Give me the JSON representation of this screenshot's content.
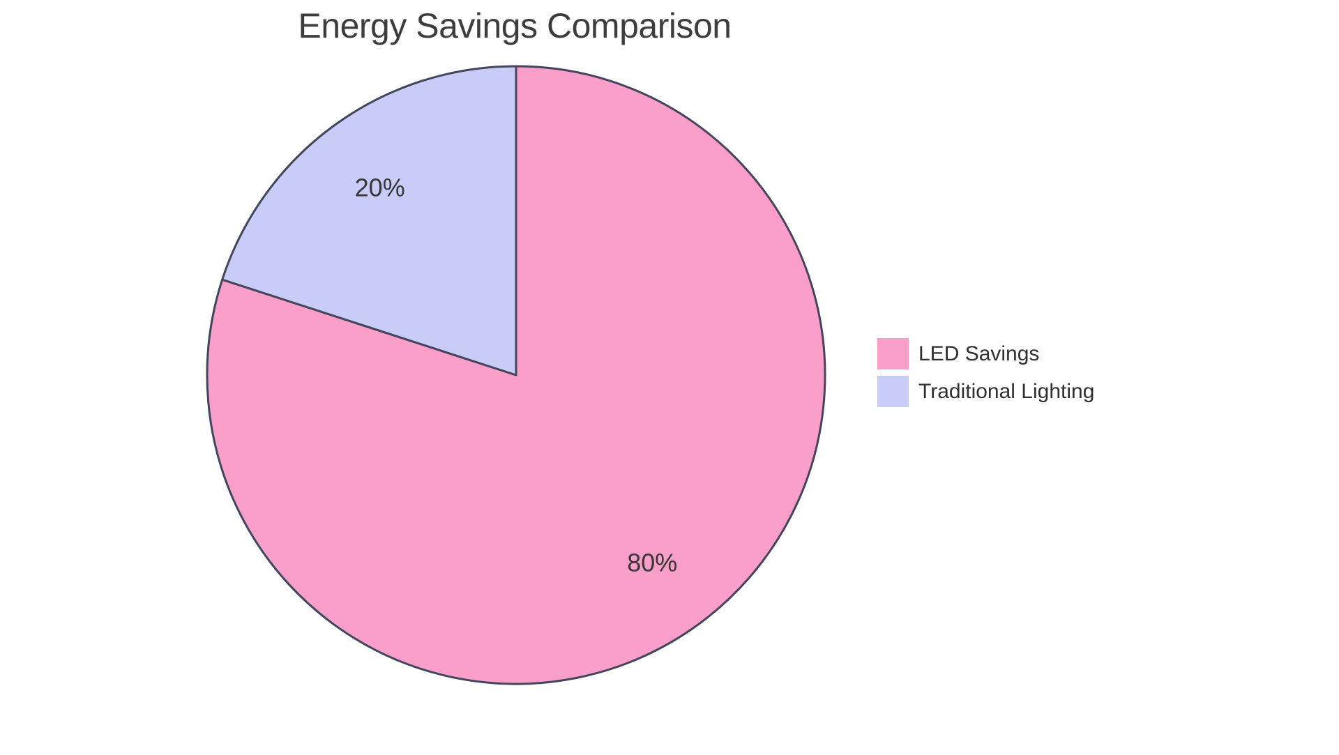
{
  "page": {
    "background_color": "#ffffff"
  },
  "chart_data": {
    "type": "pie",
    "title": "Energy Savings Comparison",
    "title_color": "#3d3d3d",
    "slices": [
      {
        "label": "LED Savings",
        "value": 80,
        "percent_label": "80%",
        "color": "#F99FC9"
      },
      {
        "label": "Traditional Lighting",
        "value": 20,
        "percent_label": "20%",
        "color": "#C9CCF7"
      }
    ],
    "total": 100,
    "slice_border_color": "#42455C",
    "percent_label_color": "#363636",
    "legend_position": "right",
    "start_angle_deg": 0,
    "direction": "clockwise"
  }
}
